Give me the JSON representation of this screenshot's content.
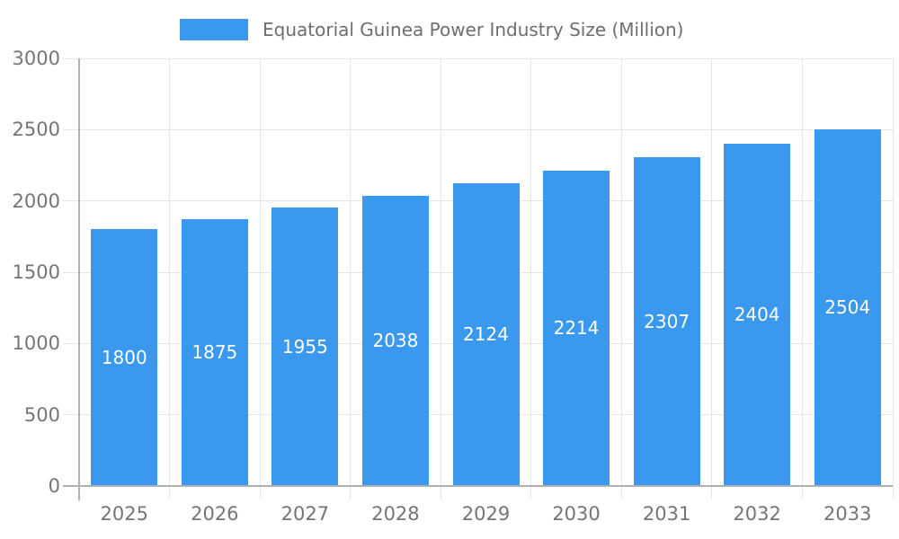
{
  "chart_data": {
    "type": "bar",
    "title": "Equatorial Guinea Power Industry Size (Million)",
    "categories": [
      "2025",
      "2026",
      "2027",
      "2028",
      "2029",
      "2030",
      "2031",
      "2032",
      "2033"
    ],
    "values": [
      1800,
      1875,
      1955,
      2038,
      2124,
      2214,
      2307,
      2404,
      2504
    ],
    "xlabel": "",
    "ylabel": "",
    "ylim": [
      0,
      3000
    ],
    "yticks": [
      0,
      500,
      1000,
      1500,
      2000,
      2500,
      3000
    ],
    "grid": true,
    "legend_position": "top",
    "colors": {
      "bar": "#3b98ef",
      "bar_label_text": "#ffffff",
      "axis_text": "#757575",
      "legend_text": "#6e6e6e",
      "gridline": "#e6e6e6",
      "axis_line": "#b0b0b0",
      "background": "#ffffff"
    }
  }
}
